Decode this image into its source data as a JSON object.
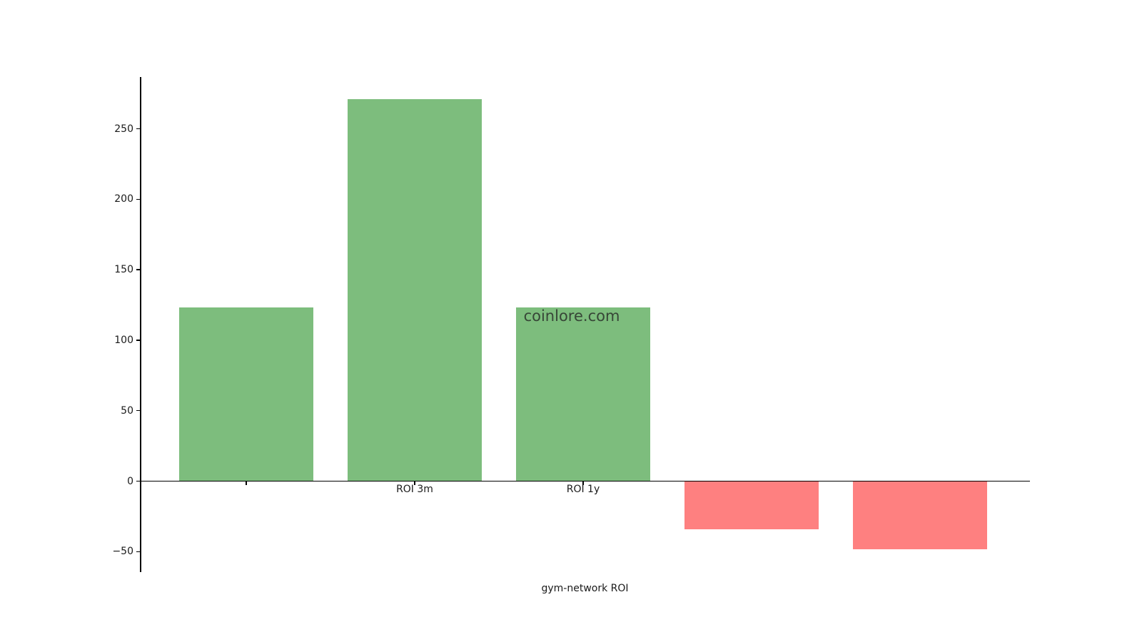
{
  "watermark": "coinlore.com",
  "colors": {
    "positive_bar": "#7dbd7d",
    "negative_bar": "#fe8080",
    "axis": "#000000",
    "text": "#1a1a1a",
    "watermark_text": "#374637",
    "background": "#ffffff"
  },
  "chart_data": {
    "type": "bar",
    "title": "",
    "xlabel": "gym-network ROI",
    "ylabel": "",
    "categories": [
      "",
      "ROI 3m",
      "ROI 1y",
      "",
      ""
    ],
    "values": [
      123,
      271,
      123,
      -34,
      -48
    ],
    "series": [
      {
        "name": "gym-network ROI",
        "values": [
          123,
          271,
          123,
          -34,
          -48
        ],
        "colors": [
          "#7dbd7d",
          "#7dbd7d",
          "#7dbd7d",
          "#fe8080",
          "#fe8080"
        ]
      }
    ],
    "yticks": [
      250,
      200,
      150,
      100,
      50,
      0,
      -50
    ],
    "ytick_labels": [
      "250",
      "200",
      "150",
      "100",
      "50",
      "0",
      "−50"
    ],
    "ylim": [
      -64,
      287
    ],
    "grid": false,
    "legend": null,
    "annotations": [
      "coinlore.com"
    ],
    "bar_color_rule": "green for positive ROI, red for negative ROI"
  }
}
